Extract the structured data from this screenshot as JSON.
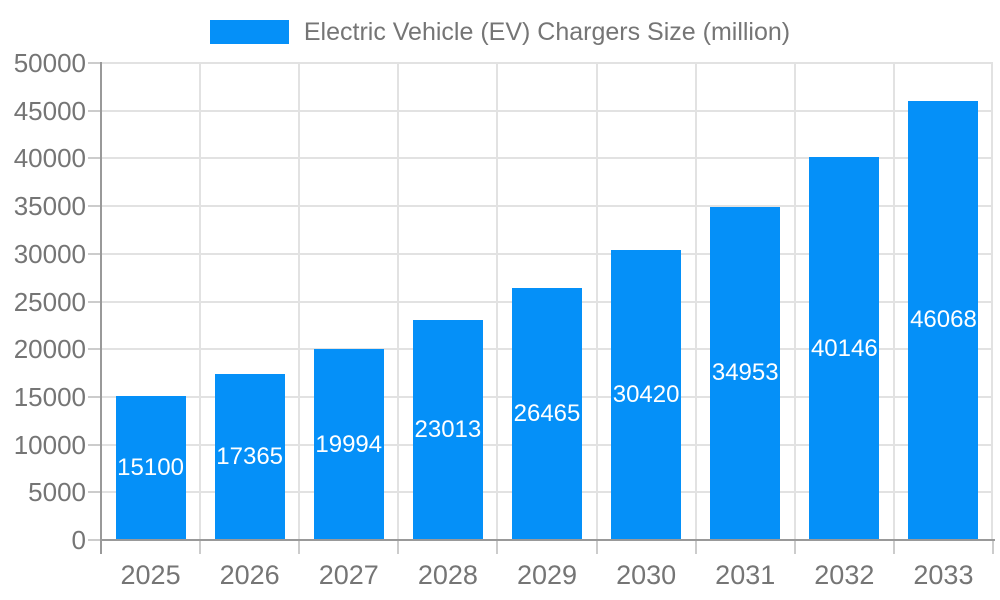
{
  "legend": {
    "label": "Electric Vehicle (EV) Chargers Size (million)",
    "swatch_color": "#0590f8"
  },
  "chart_data": {
    "type": "bar",
    "title": "Electric Vehicle (EV) Chargers Size (million)",
    "series_name": "Electric Vehicle (EV) Chargers Size (million)",
    "categories": [
      "2025",
      "2026",
      "2027",
      "2028",
      "2029",
      "2030",
      "2031",
      "2032",
      "2033"
    ],
    "values": [
      15100,
      17365,
      19994,
      23013,
      26465,
      30420,
      34953,
      40146,
      46068
    ],
    "value_labels": [
      "15100",
      "17365",
      "19994",
      "23013",
      "26465",
      "30420",
      "34953",
      "40146",
      "46068"
    ],
    "xlabel": "",
    "ylabel": "",
    "ylim": [
      0,
      50000
    ],
    "yticks": [
      0,
      5000,
      10000,
      15000,
      20000,
      25000,
      30000,
      35000,
      40000,
      45000,
      50000
    ],
    "grid": true,
    "legend_position": "top",
    "colors": {
      "bar": "#0590f8",
      "bar_value_label": "#ffffff",
      "axis_text": "#757575",
      "axis_line": "#999999",
      "gridline": "#e2e2e2",
      "tick": "#cccccc",
      "background": "#ffffff"
    }
  }
}
